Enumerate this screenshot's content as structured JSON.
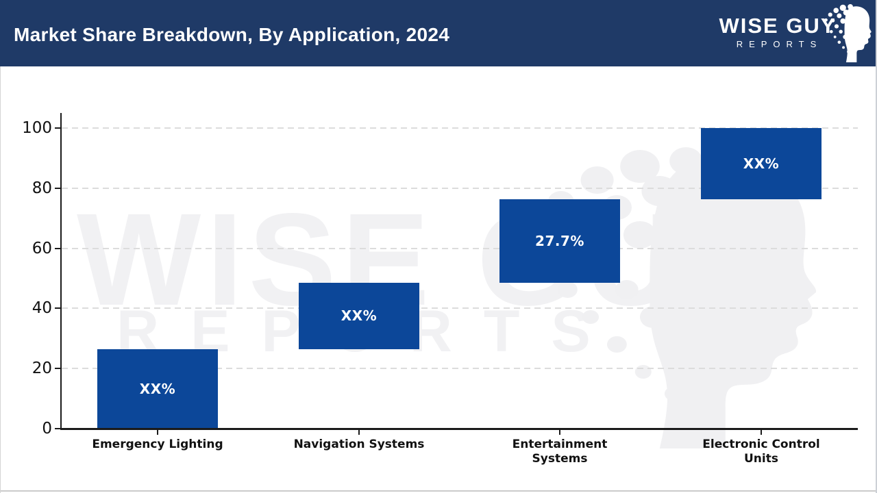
{
  "header": {
    "title": "Market Share Breakdown, By Application, 2024",
    "background_color": "#1f3a67",
    "logo": {
      "name": "WISE GUY",
      "subtitle": "REPORTS"
    }
  },
  "watermark": {
    "line1": "WISE GUY",
    "line2": "REPORTS"
  },
  "chart_data": {
    "type": "bar",
    "subtype": "floating-waterfall",
    "title": "Market Share Breakdown, By Application, 2024",
    "categories": [
      "Emergency Lighting",
      "Navigation Systems",
      "Entertainment\nSystems",
      "Electronic Control\nUnits"
    ],
    "segments": [
      {
        "category": "Emergency Lighting",
        "start": 0,
        "end": 26.4,
        "value_label": "XX%"
      },
      {
        "category": "Navigation Systems",
        "start": 26.4,
        "end": 48.6,
        "value_label": "XX%"
      },
      {
        "category": "Entertainment Systems",
        "start": 48.6,
        "end": 76.3,
        "value_label": "27.7%"
      },
      {
        "category": "Electronic Control Units",
        "start": 76.3,
        "end": 100,
        "value_label": "XX%"
      }
    ],
    "yticks": [
      0,
      20,
      40,
      60,
      80,
      100
    ],
    "ylim": [
      0,
      105
    ],
    "xlabel": "",
    "ylabel": "",
    "bar_color": "#0c4799",
    "grid": {
      "horizontal": true,
      "style": "dashed",
      "color": "#dcdcdc"
    },
    "legend": "none"
  }
}
